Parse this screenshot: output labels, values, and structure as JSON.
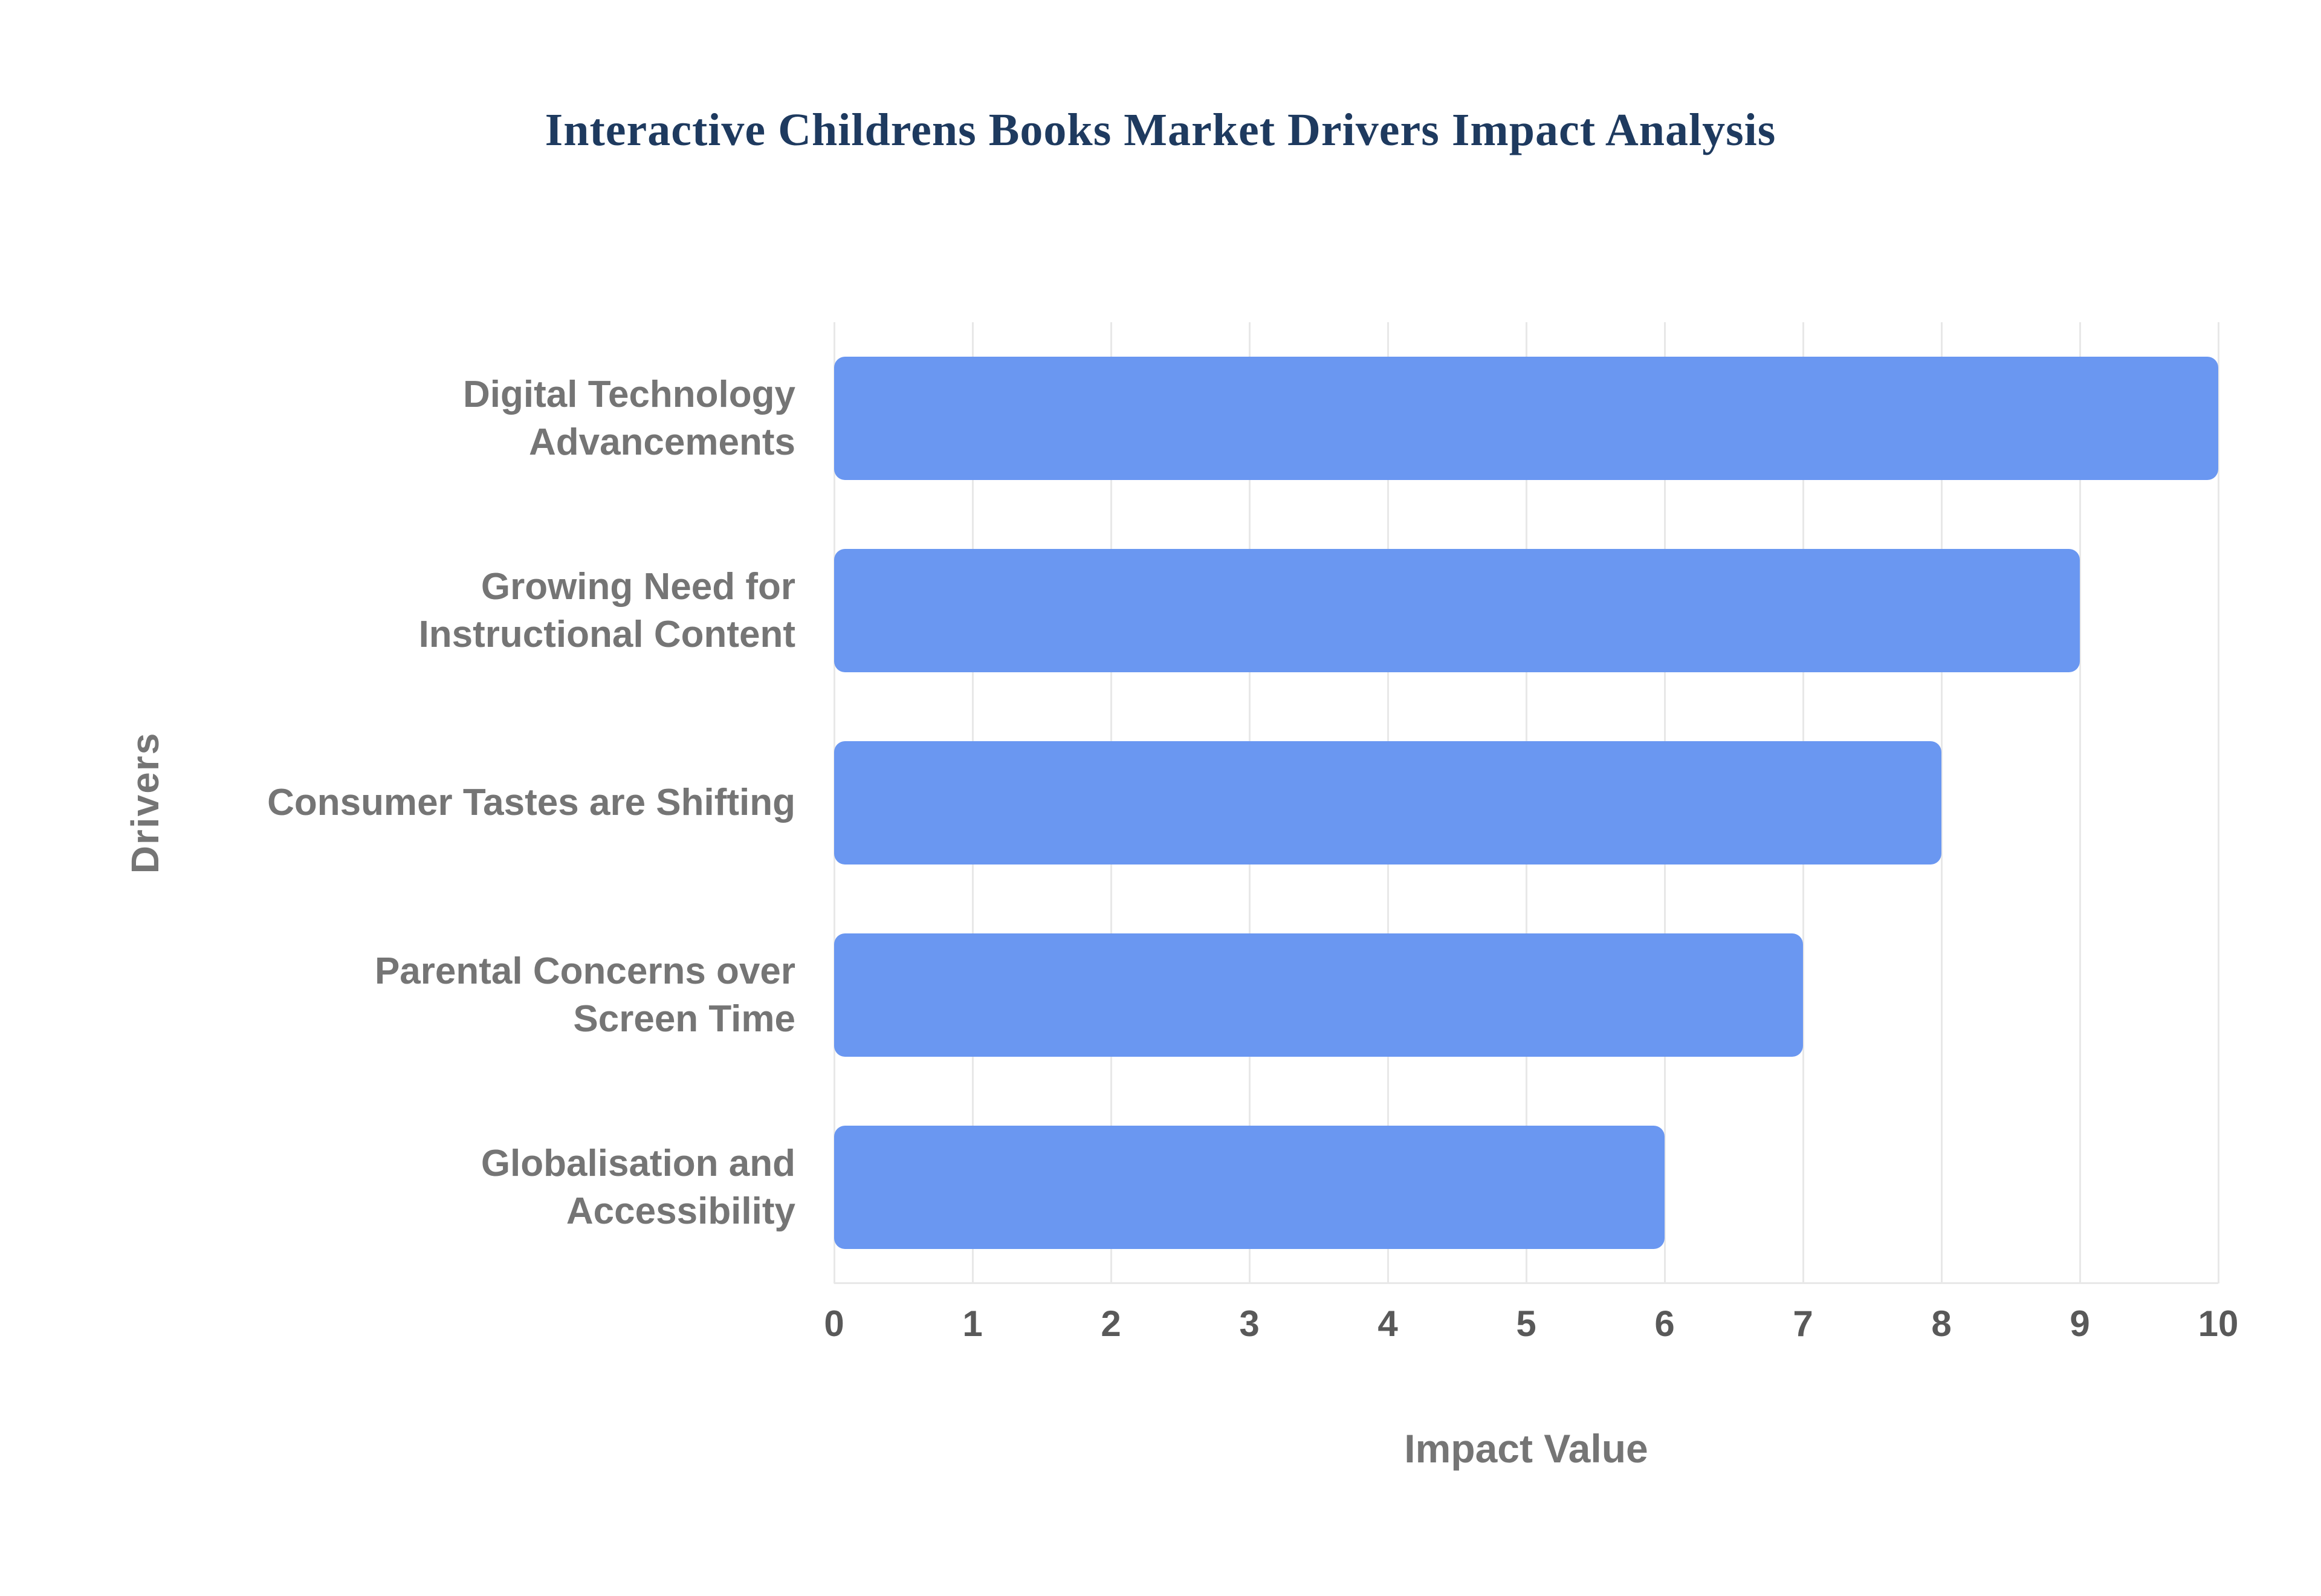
{
  "chart_data": {
    "type": "bar",
    "orientation": "horizontal",
    "title": "Interactive Childrens Books Market Drivers Impact Analysis",
    "categories": [
      "Digital Technology Advancements",
      "Growing Need for Instructional Content",
      "Consumer Tastes are Shifting",
      "Parental Concerns over Screen Time",
      "Globalisation and Accessibility"
    ],
    "values": [
      10,
      9,
      8,
      7,
      6
    ],
    "xlabel": "Impact Value",
    "ylabel": "Drivers",
    "xlim": [
      0,
      10
    ],
    "xticks": [
      0,
      1,
      2,
      3,
      4,
      5,
      6,
      7,
      8,
      9,
      10
    ],
    "grid": true,
    "legend": false,
    "colors": {
      "bar": "#6a97f1",
      "grid": "#e8e8e8",
      "title": "#1e3a5f",
      "category_label": "#757575",
      "tick_label": "#595959"
    }
  }
}
